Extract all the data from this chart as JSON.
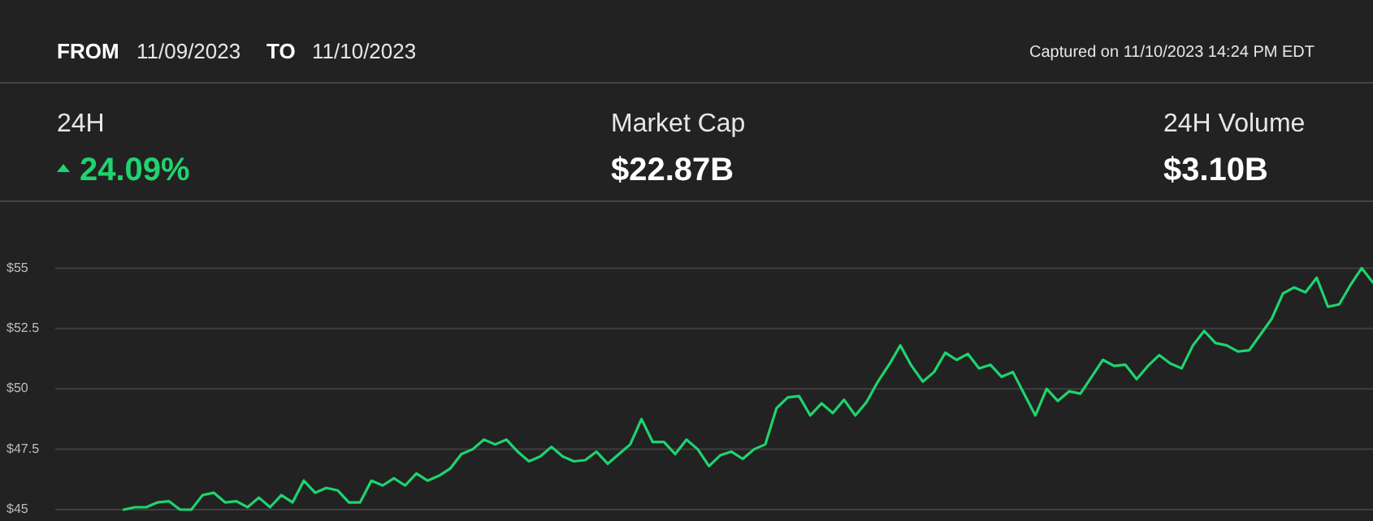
{
  "chart_data": {
    "type": "line",
    "annotations": [
      "FROM",
      "11/09/2023",
      "TO",
      "11/10/2023",
      "Captured on 11/10/2023 14:24 PM EDT",
      "24H",
      "24.09%",
      "Market Cap",
      "$22.87B",
      "24H Volume",
      "$3.10B"
    ],
    "categories": [
      null,
      null,
      null,
      null,
      null,
      null,
      null,
      null,
      null,
      null,
      null,
      null,
      null,
      null,
      null,
      null,
      null,
      null,
      null,
      null,
      null,
      null,
      null,
      null,
      null,
      null,
      null,
      null,
      null,
      null,
      null,
      null,
      null,
      null,
      null,
      null,
      null,
      null,
      null,
      null,
      null,
      null,
      null,
      null,
      null,
      null,
      null,
      null,
      null,
      null,
      null,
      null,
      null,
      null,
      null,
      null,
      null,
      null,
      null,
      null,
      null,
      null,
      null,
      null,
      null,
      null,
      null,
      null,
      null,
      null,
      null,
      null,
      null,
      null,
      null,
      null,
      null,
      null,
      null,
      null,
      null,
      null,
      null,
      null,
      null,
      null,
      null,
      null,
      null,
      null,
      null,
      null,
      null,
      null,
      null,
      null,
      null,
      null,
      null,
      null,
      null,
      null,
      null,
      null,
      null,
      null,
      null,
      null,
      null,
      null,
      null,
      null,
      null,
      null,
      null,
      null,
      null,
      null,
      null,
      null,
      null,
      null,
      null
    ],
    "series": [
      {
        "color": "#1ed46e",
        "values": [
          null,
          null,
          null,
          null,
          null,
          null,
          null,
          null,
          null,
          null,
          null,
          45.0,
          45.1,
          45.1,
          45.3,
          45.35,
          45.0,
          45.0,
          45.6,
          45.7,
          45.3,
          45.35,
          45.1,
          45.5,
          45.1,
          45.6,
          45.3,
          46.2,
          45.7,
          45.9,
          45.8,
          45.3,
          45.3,
          46.2,
          46.0,
          46.3,
          46.0,
          46.5,
          46.2,
          46.4,
          46.7,
          47.3,
          47.5,
          47.9,
          47.7,
          47.9,
          47.4,
          47.0,
          47.2,
          47.6,
          47.2,
          47.0,
          47.05,
          47.4,
          46.9,
          47.3,
          47.7,
          48.75,
          47.8,
          47.8,
          47.3,
          47.9,
          47.5,
          46.8,
          47.25,
          47.4,
          47.1,
          47.5,
          47.7,
          49.2,
          49.65,
          49.7,
          48.9,
          49.4,
          49.0,
          49.55,
          48.9,
          49.45,
          50.3,
          51.0,
          51.8,
          50.95,
          50.3,
          50.7,
          51.5,
          51.2,
          51.45,
          50.85,
          51.0,
          50.5,
          50.7,
          49.8,
          48.9,
          50.0,
          49.5,
          49.9,
          49.8,
          50.5,
          51.2,
          50.95,
          51.0,
          50.4,
          50.95,
          51.4,
          51.05,
          50.85,
          51.8,
          52.4,
          51.9,
          51.8,
          51.55,
          51.6,
          52.25,
          52.9,
          53.95,
          54.2,
          54.0,
          54.6,
          53.4,
          53.5,
          54.3,
          55.0,
          54.4
        ]
      }
    ],
    "ylim": [
      45,
      57.5
    ],
    "yticks": [
      {
        "value": 45,
        "label": "$45"
      },
      {
        "value": 47.5,
        "label": "$47.5"
      },
      {
        "value": 50,
        "label": "$50"
      },
      {
        "value": 52.5,
        "label": "$52.5"
      },
      {
        "value": 55,
        "label": "$55"
      }
    ],
    "grid": "y",
    "tick_labels": "y"
  }
}
